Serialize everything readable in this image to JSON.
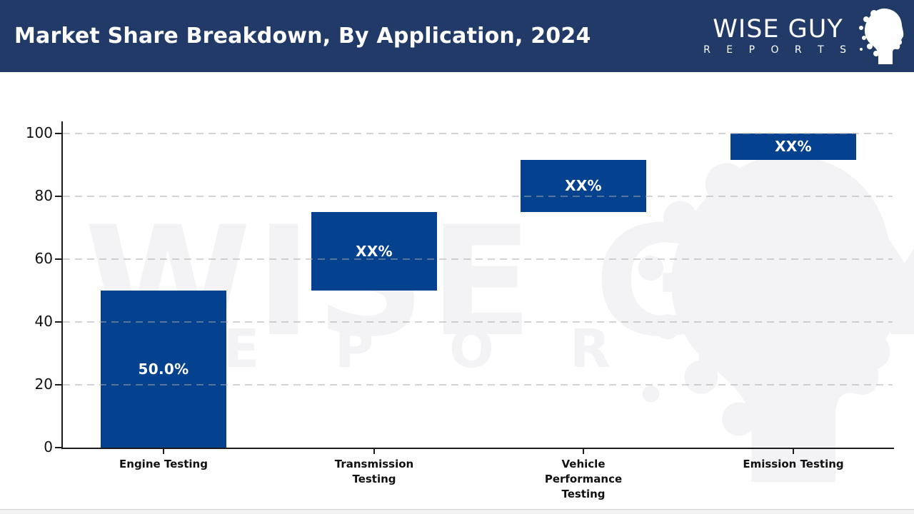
{
  "header": {
    "title": "Market Share Breakdown, By Application, 2024",
    "logo": {
      "line1": "WISE GUY",
      "line2": "R E P O R T S"
    }
  },
  "watermark": {
    "line1": "WISE GUY",
    "line2": "R E P O R T S"
  },
  "colors": {
    "header_bg": "#213A67",
    "bar": "#04418E",
    "bar_label_text": "#FFFFFF",
    "axis": "#1C1C1C",
    "watermark": "#F3F3F5"
  },
  "chart_data": {
    "type": "bar",
    "subtype": "waterfall",
    "title": "Market Share Breakdown, By Application, 2024",
    "categories": [
      "Engine Testing",
      "Transmission\nTesting",
      "Vehicle\nPerformance\nTesting",
      "Emission Testing"
    ],
    "segments": [
      {
        "category": "Engine Testing",
        "start": 0,
        "end": 50,
        "value": 50.0,
        "label": "50.0%"
      },
      {
        "category": "Transmission Testing",
        "start": 50,
        "end": 75,
        "value": 25.0,
        "label": "XX%"
      },
      {
        "category": "Vehicle Performance Testing",
        "start": 75,
        "end": 91.7,
        "value": 16.7,
        "label": "XX%"
      },
      {
        "category": "Emission Testing",
        "start": 91.7,
        "end": 100,
        "value": 8.3,
        "label": "XX%"
      }
    ],
    "ylim": [
      0,
      100
    ],
    "yticks": [
      0,
      20,
      40,
      60,
      80,
      100
    ],
    "xlabel": "",
    "ylabel": "",
    "grid": "horizontal-dashed",
    "legend": "none"
  }
}
